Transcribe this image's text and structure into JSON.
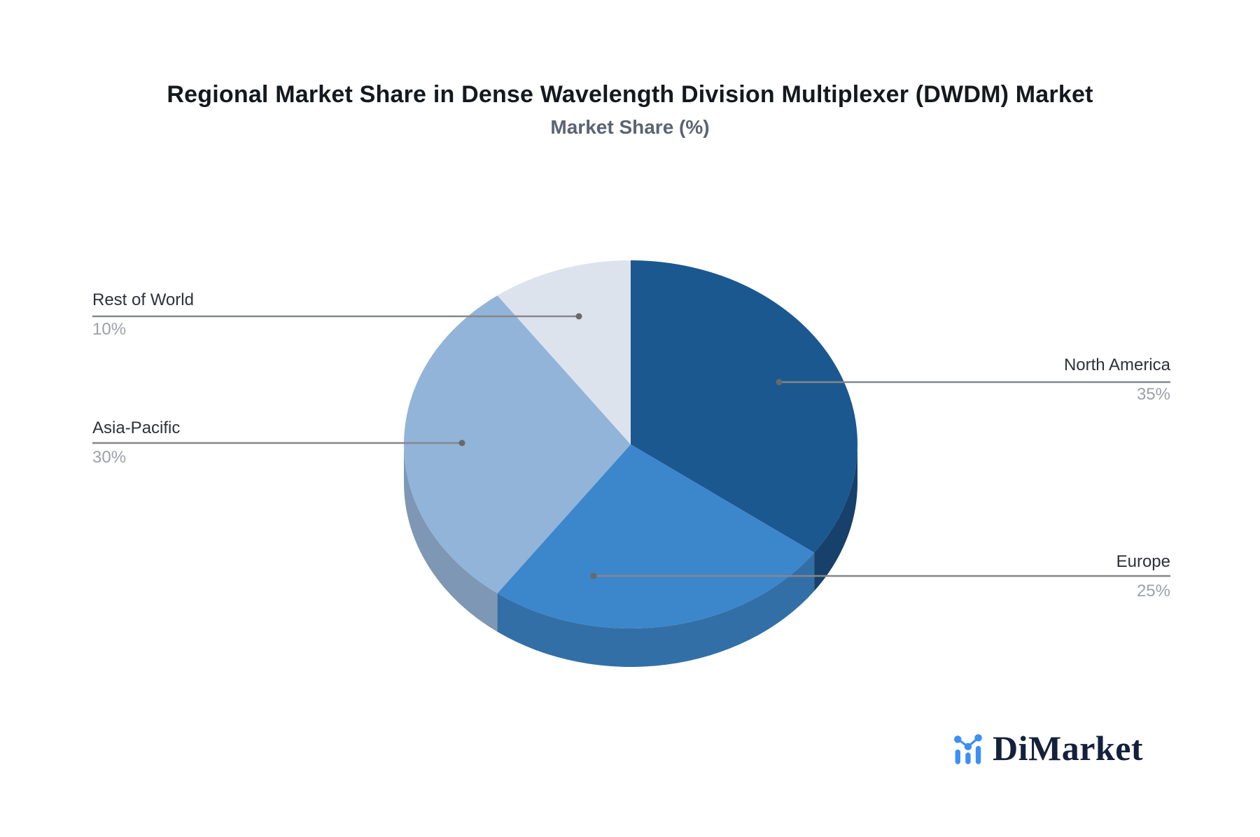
{
  "header": {
    "title": "Regional Market Share in Dense Wavelength Division Multiplexer (DWDM) Market",
    "subtitle": "Market Share (%)"
  },
  "logo": {
    "text": "DiMarket",
    "icon": "bar-chart-trend-icon",
    "icon_color": "#3d8ef6",
    "text_color": "#15213b"
  },
  "chart_data": {
    "type": "pie",
    "style": "3d",
    "title": "Regional Market Share in Dense Wavelength Division Multiplexer (DWDM) Market",
    "subtitle": "Market Share (%)",
    "unit": "%",
    "start_angle_deg": 0,
    "direction": "clockwise",
    "legend_position": "callout-labels",
    "slices": [
      {
        "label": "North America",
        "value": 35,
        "pct_label": "35%",
        "color": "#1b5890",
        "side_color": "#17406a",
        "callout_side": "right"
      },
      {
        "label": "Europe",
        "value": 25,
        "pct_label": "25%",
        "color": "#3c86cc",
        "side_color": "#336fa7",
        "callout_side": "right"
      },
      {
        "label": "Asia-Pacific",
        "value": 30,
        "pct_label": "30%",
        "color": "#92b4d9",
        "side_color": "#7e97b4",
        "callout_side": "left"
      },
      {
        "label": "Rest of World",
        "value": 10,
        "pct_label": "10%",
        "color": "#dde3ed",
        "side_color": "#b9c2d1",
        "callout_side": "left"
      }
    ],
    "callout_line_color": "#85878a",
    "callout_dot_color": "#67696b",
    "label_color": "#2e3136",
    "value_color": "#9ca1a8"
  }
}
